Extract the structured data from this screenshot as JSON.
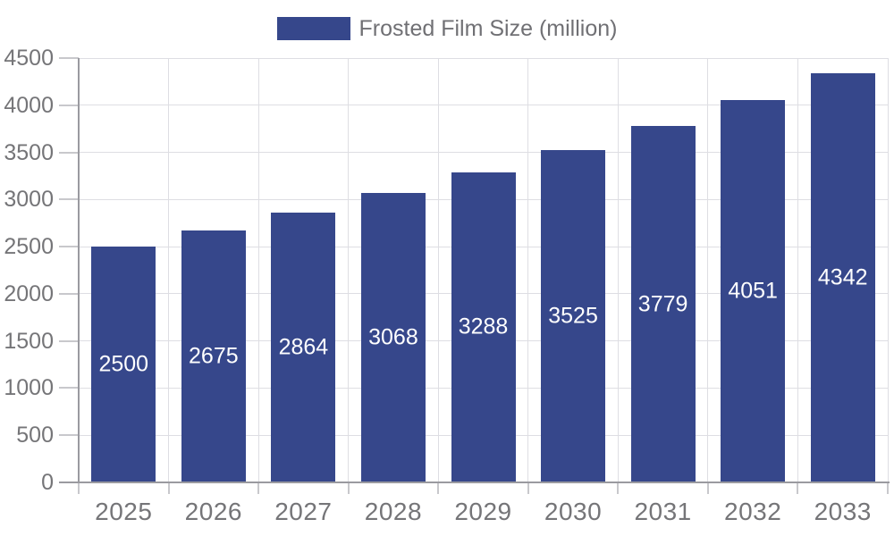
{
  "chart_data": {
    "type": "bar",
    "legend_label": "Frosted Film Size (million)",
    "categories": [
      "2025",
      "2026",
      "2027",
      "2028",
      "2029",
      "2030",
      "2031",
      "2032",
      "2033"
    ],
    "values": [
      2500,
      2675,
      2864,
      3068,
      3288,
      3525,
      3779,
      4051,
      4342
    ],
    "bar_labels_visible": true,
    "xlabel": "",
    "ylabel": "",
    "ylim": [
      0,
      4500
    ],
    "yticks": [
      0,
      500,
      1000,
      1500,
      2000,
      2500,
      3000,
      3500,
      4000,
      4500
    ],
    "grid": true,
    "legend_position": "top-center",
    "colors": {
      "bar": "#36478B",
      "bar_label": "#FFFFFF",
      "grid": "#DEDEE3",
      "tick": "#C8C8CC",
      "axis_line": "#9A9AA0",
      "axis_label": "#757578",
      "legend_text": "#707074",
      "background": "#FFFFFF"
    }
  }
}
